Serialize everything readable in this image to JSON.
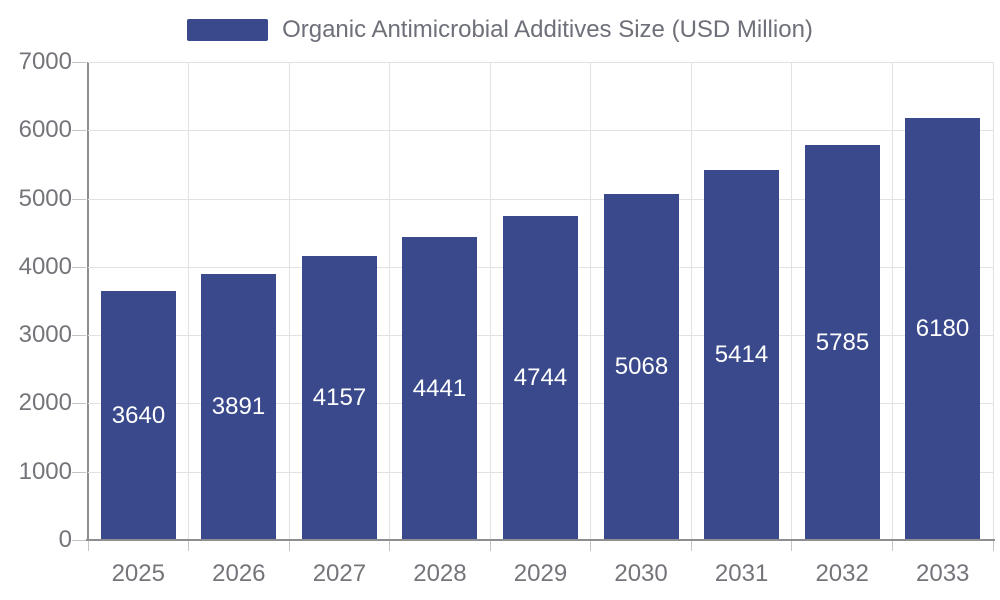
{
  "chart_data": {
    "type": "bar",
    "title": "Organic Antimicrobial Additives Size (USD Million)",
    "categories": [
      "2025",
      "2026",
      "2027",
      "2028",
      "2029",
      "2030",
      "2031",
      "2032",
      "2033"
    ],
    "values": [
      3640,
      3891,
      4157,
      4441,
      4744,
      5068,
      5414,
      5785,
      6180
    ],
    "xlabel": "",
    "ylabel": "",
    "ylim": [
      0,
      7000
    ],
    "yticks": [
      0,
      1000,
      2000,
      3000,
      4000,
      5000,
      6000,
      7000
    ],
    "grid": true,
    "legend_position": "top",
    "bar_label_position": "inside-middle"
  },
  "legend": {
    "label": "Organic Antimicrobial Additives Size (USD Million)"
  },
  "colors": {
    "bar": "#39498C",
    "grid": "#E2E2E2",
    "axis": "#8E8E8E",
    "tick": "#C4C4C4",
    "axis_label": "#74757A",
    "legend_text": "#6E7079",
    "bar_label": "#FFFFFF",
    "background": "#FFFFFF"
  }
}
